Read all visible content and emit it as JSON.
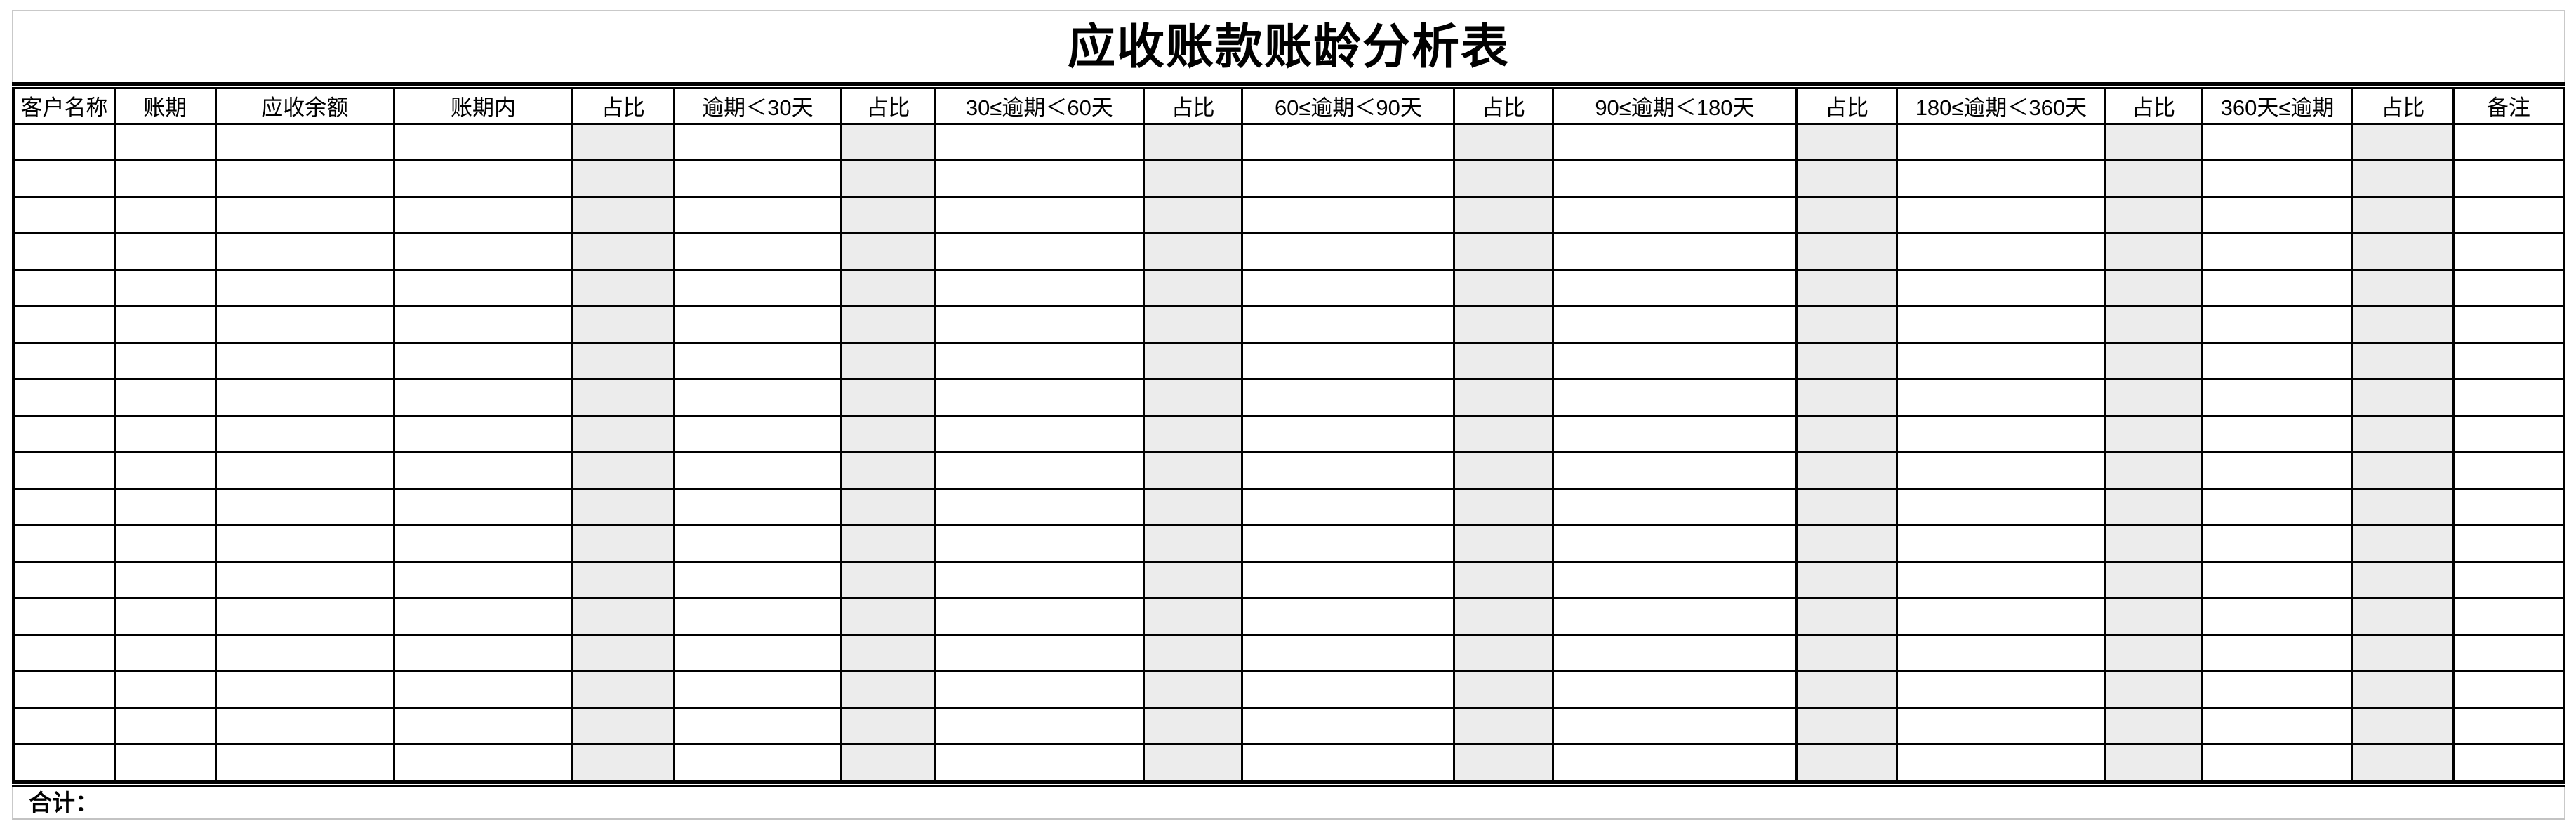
{
  "title": "应收账款账龄分析表",
  "footer": {
    "total_label": "合计："
  },
  "table": {
    "row_count": 18,
    "columns": [
      {
        "id": "customer-name",
        "label": "客户名称",
        "width_pct": 3.98,
        "shaded": false
      },
      {
        "id": "credit-period",
        "label": "账期",
        "width_pct": 3.95,
        "shaded": false
      },
      {
        "id": "receivable-balance",
        "label": "应收余额",
        "width_pct": 7.0,
        "shaded": false
      },
      {
        "id": "within-period",
        "label": "账期内",
        "width_pct": 7.0,
        "shaded": false
      },
      {
        "id": "ratio-within",
        "label": "占比",
        "width_pct": 3.98,
        "shaded": true
      },
      {
        "id": "overdue-under-30",
        "label": "逾期＜30天",
        "width_pct": 6.56,
        "shaded": false
      },
      {
        "id": "ratio-overdue-under-30",
        "label": "占比",
        "width_pct": 3.68,
        "shaded": true
      },
      {
        "id": "overdue-30-60",
        "label": "30≤逾期＜60天",
        "width_pct": 8.18,
        "shaded": false
      },
      {
        "id": "ratio-overdue-30-60",
        "label": "占比",
        "width_pct": 3.87,
        "shaded": true
      },
      {
        "id": "overdue-60-90",
        "label": "60≤逾期＜90天",
        "width_pct": 8.31,
        "shaded": false
      },
      {
        "id": "ratio-overdue-60-90",
        "label": "占比",
        "width_pct": 3.87,
        "shaded": true
      },
      {
        "id": "overdue-90-180",
        "label": "90≤逾期＜180天",
        "width_pct": 9.55,
        "shaded": false
      },
      {
        "id": "ratio-overdue-90-180",
        "label": "占比",
        "width_pct": 3.95,
        "shaded": true
      },
      {
        "id": "overdue-180-360",
        "label": "180≤逾期＜360天",
        "width_pct": 8.15,
        "shaded": false
      },
      {
        "id": "ratio-overdue-180-360",
        "label": "占比",
        "width_pct": 3.81,
        "shaded": true
      },
      {
        "id": "overdue-over-360",
        "label": "360天≤逾期",
        "width_pct": 5.9,
        "shaded": false
      },
      {
        "id": "ratio-overdue-over-360",
        "label": "占比",
        "width_pct": 3.95,
        "shaded": true
      },
      {
        "id": "remarks",
        "label": "备注",
        "width_pct": 4.34,
        "shaded": false
      }
    ]
  },
  "colors": {
    "grid_line": "#000000",
    "frame_gray": "#c9c9c9",
    "row_shade": "#ececec",
    "background": "#ffffff",
    "text": "#000000"
  }
}
